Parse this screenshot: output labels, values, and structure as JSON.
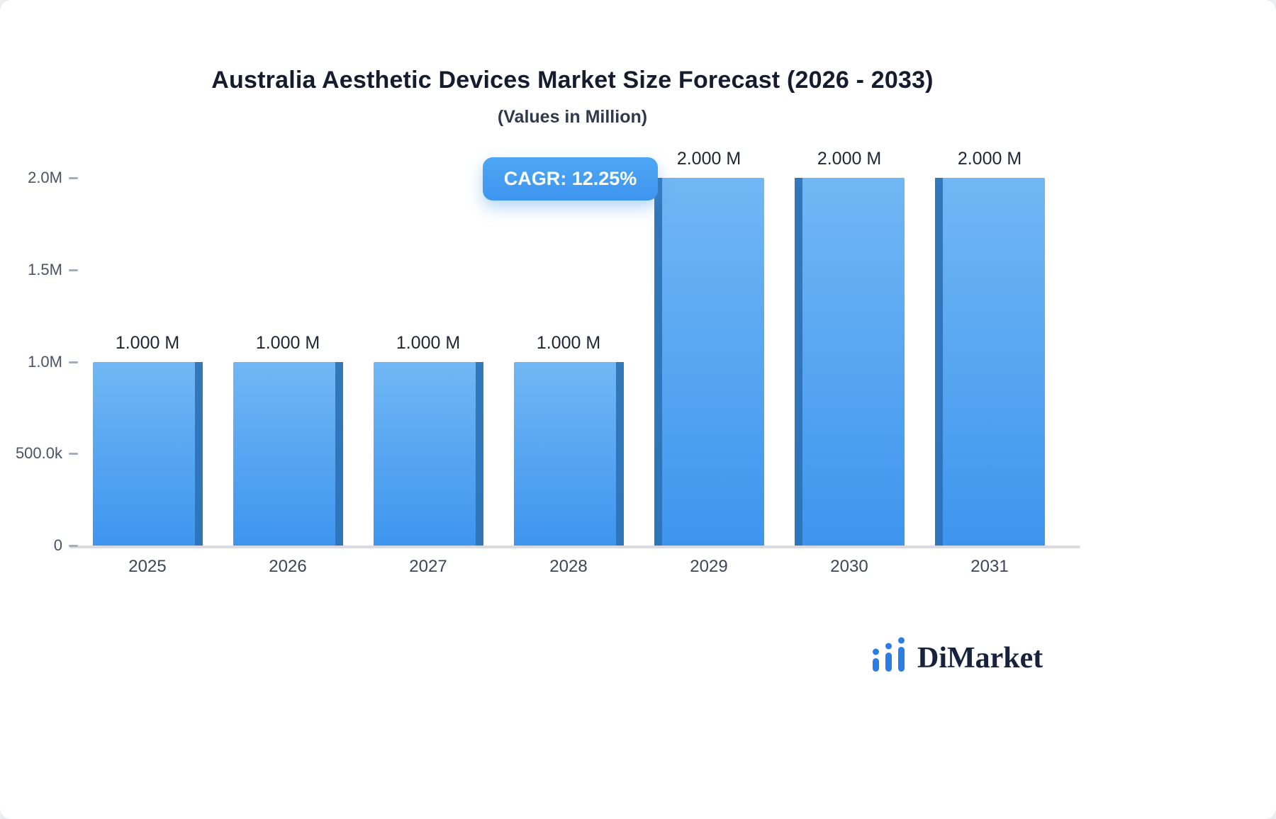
{
  "page": {
    "title": "Australia Aesthetic Devices Market Size Forecast (2026 - 2033)",
    "subtitle": "(Values in Million)"
  },
  "badge": {
    "label": "CAGR: 12.25%"
  },
  "logo": {
    "text": "DiMarket"
  },
  "chart_data": {
    "type": "bar",
    "title": "Australia Aesthetic Devices Market Size Forecast (2026 - 2033)",
    "subtitle": "(Values in Million)",
    "categories": [
      "2025",
      "2026",
      "2027",
      "2028",
      "2029",
      "2030",
      "2031"
    ],
    "values": [
      1000000,
      1000000,
      1000000,
      1000000,
      2000000,
      2000000,
      2000000
    ],
    "value_labels": [
      "1.000 M",
      "1.000 M",
      "1.000 M",
      "1.000 M",
      "2.000 M",
      "2.000 M",
      "2.000 M"
    ],
    "xlabel": "",
    "ylabel": "",
    "ylim": [
      0,
      2000000
    ],
    "yticks": [
      {
        "value": 0,
        "label": "0"
      },
      {
        "value": 500000,
        "label": "500.0k"
      },
      {
        "value": 1000000,
        "label": "1.0M"
      },
      {
        "value": 1500000,
        "label": "1.5M"
      },
      {
        "value": 2000000,
        "label": "2.0M"
      }
    ],
    "grid": false,
    "legend": false,
    "annotation": "CAGR: 12.25%",
    "bar_color_top": "#71b7f4",
    "bar_color_bottom": "#3e95ee",
    "bar_edge_color": "#2d72b5",
    "edge_sides": [
      "right",
      "right",
      "right",
      "right",
      "left",
      "left",
      "left"
    ]
  }
}
